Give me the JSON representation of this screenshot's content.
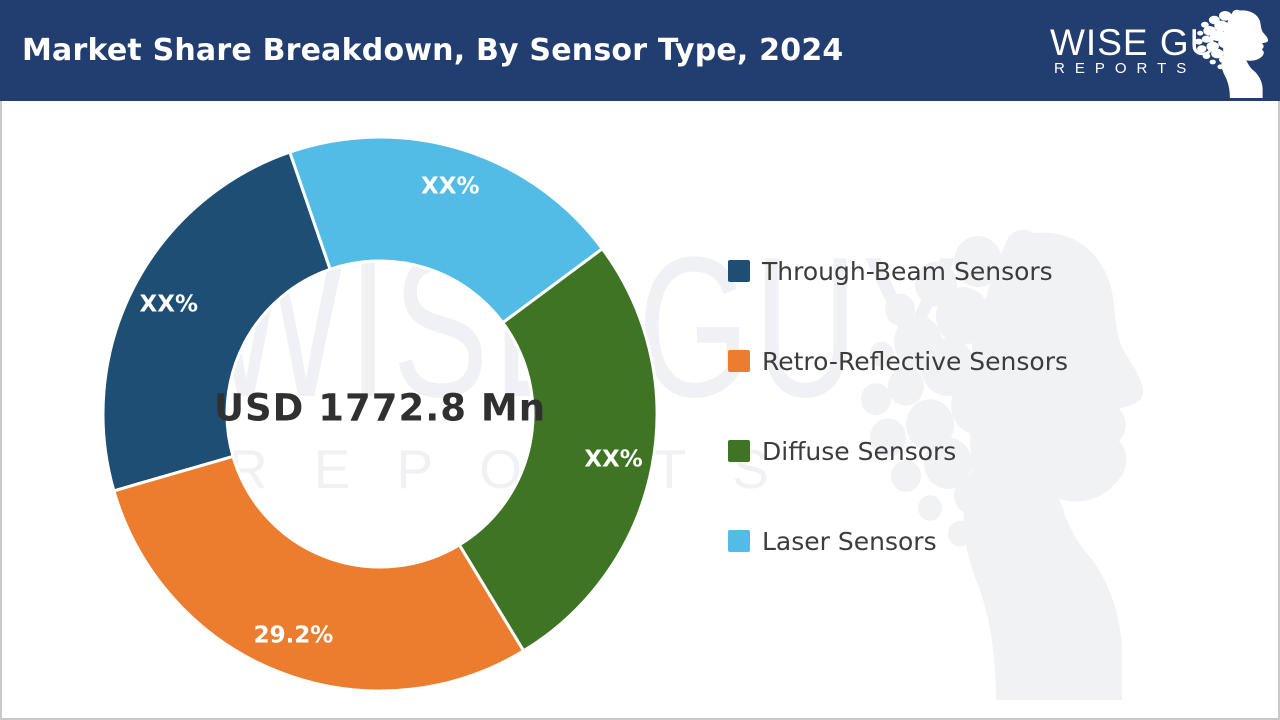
{
  "header": {
    "title": "Market Share Breakdown, By Sensor Type, 2024",
    "logo": {
      "wordmark": "WISE GUY",
      "reports": "REPORTS"
    }
  },
  "watermark": {
    "wordmark": "WISE GUY",
    "reports": "REPORTS"
  },
  "chart_data": {
    "type": "pie",
    "variant": "donut",
    "title": "Market Share Breakdown, By Sensor Type, 2024",
    "center_label": "USD 1772.8 Mn",
    "start_angle_deg": 341,
    "direction": "counterclockwise",
    "legend_position": "right",
    "segments": [
      {
        "name": "Through-Beam Sensors",
        "value_pct": 24.2,
        "display_label": "XX%",
        "color": "#1F4E74"
      },
      {
        "name": "Retro-Reflective Sensors",
        "value_pct": 29.2,
        "display_label": "29.2%",
        "color": "#EC7D2F"
      },
      {
        "name": "Diffuse Sensors",
        "value_pct": 26.5,
        "display_label": "XX%",
        "color": "#3E7423"
      },
      {
        "name": "Laser Sensors",
        "value_pct": 20.1,
        "display_label": "XX%",
        "color": "#53BCE6"
      }
    ],
    "colors": {
      "header_bg": "#223D6F",
      "page_border": "#C9C9C9",
      "center_text": "#303030",
      "legend_text": "#3C3C3C",
      "slice_label_text": "#FFFFFF",
      "watermark": "#F1F2F4"
    }
  }
}
